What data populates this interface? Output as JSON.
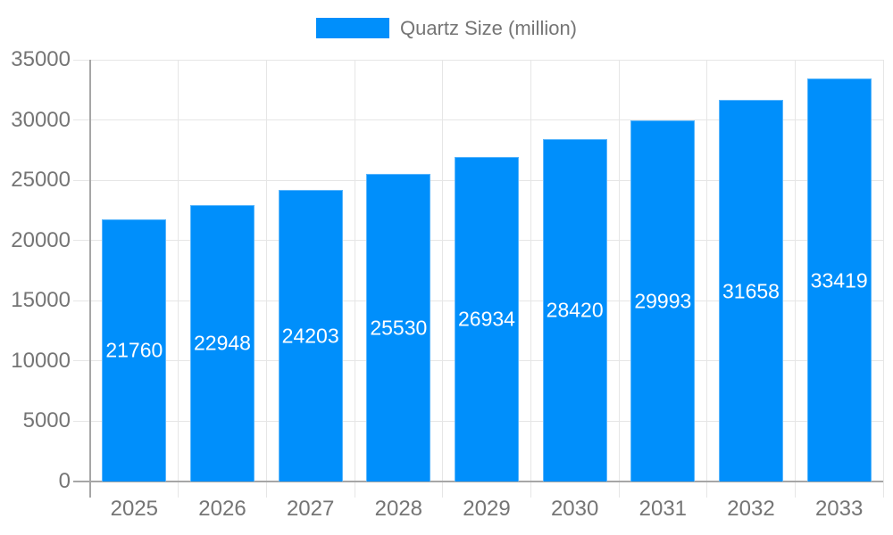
{
  "chart_data": {
    "type": "bar",
    "title": "",
    "legend": {
      "label": "Quartz Size (million)",
      "position": "top"
    },
    "categories": [
      "2025",
      "2026",
      "2027",
      "2028",
      "2029",
      "2030",
      "2031",
      "2032",
      "2033"
    ],
    "series": [
      {
        "name": "Quartz Size (million)",
        "values": [
          21760,
          22948,
          24203,
          25530,
          26934,
          28420,
          29993,
          31658,
          33419
        ]
      }
    ],
    "xlabel": "",
    "ylabel": "",
    "ylim": [
      0,
      35000
    ],
    "ytick_step": 5000,
    "y_ticks": [
      0,
      5000,
      10000,
      15000,
      20000,
      25000,
      30000,
      35000
    ],
    "grid": true,
    "value_labels_inside_bars": true,
    "colors": {
      "bar": "#008ffb",
      "axis_text": "#757575",
      "value_label": "#ffffff",
      "grid_line": "#e6e6e6",
      "axis_line": "#a6a6a6",
      "background": "#ffffff"
    }
  }
}
